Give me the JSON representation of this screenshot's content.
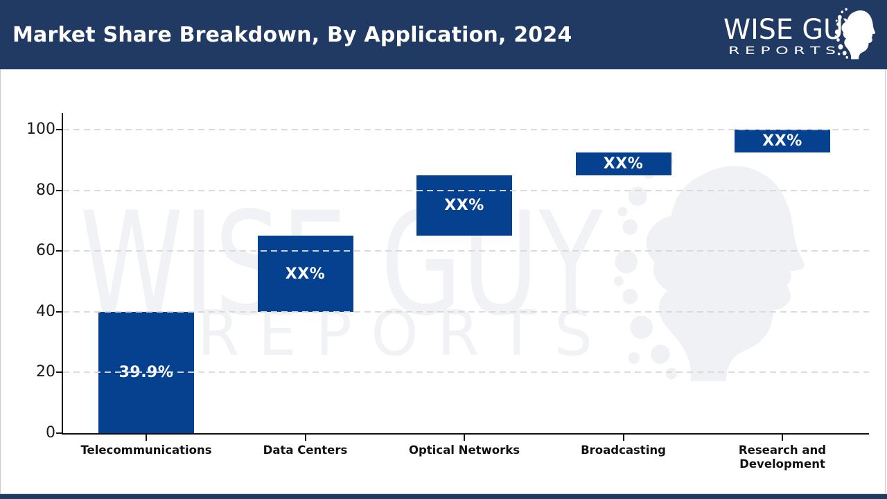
{
  "header": {
    "title": "Market Share Breakdown, By Application, 2024",
    "logo": {
      "line1": "WISE GUY",
      "line2": "R E P O R T S"
    }
  },
  "watermark": {
    "line1": "WISE GUY",
    "line2": "R E P O R T S"
  },
  "colors": {
    "header_bg": "#213a63",
    "footer_bg": "#213a63",
    "bar": "#05418f",
    "bar_label": "#ffffff",
    "grid": "#d9d9d9",
    "axis": "#111111",
    "watermark": "#f0f1f4",
    "logo_text": "#ffffff"
  },
  "chart_data": {
    "type": "bar",
    "subtype": "waterfall",
    "title": "Market Share Breakdown, By Application, 2024",
    "categories": [
      "Telecommunications",
      "Data Centers",
      "Optical Networks",
      "Broadcasting",
      "Research and Development"
    ],
    "series": [
      {
        "name": "Market share (%)",
        "segments": [
          {
            "category": "Telecommunications",
            "start": 0,
            "end": 39.9,
            "label": "39.9%"
          },
          {
            "category": "Data Centers",
            "start": 39.9,
            "end": 65,
            "label": "XX%"
          },
          {
            "category": "Optical Networks",
            "start": 65,
            "end": 85,
            "label": "XX%"
          },
          {
            "category": "Broadcasting",
            "start": 85,
            "end": 92.5,
            "label": "XX%"
          },
          {
            "category": "Research and Development",
            "start": 92.5,
            "end": 100,
            "label": "XX%"
          }
        ]
      }
    ],
    "xlabel": "",
    "ylabel": "",
    "ylim": [
      0,
      100
    ],
    "yticks": [
      0,
      20,
      40,
      60,
      80,
      100
    ],
    "grid": "dashed-horizontal",
    "legend": "none"
  }
}
